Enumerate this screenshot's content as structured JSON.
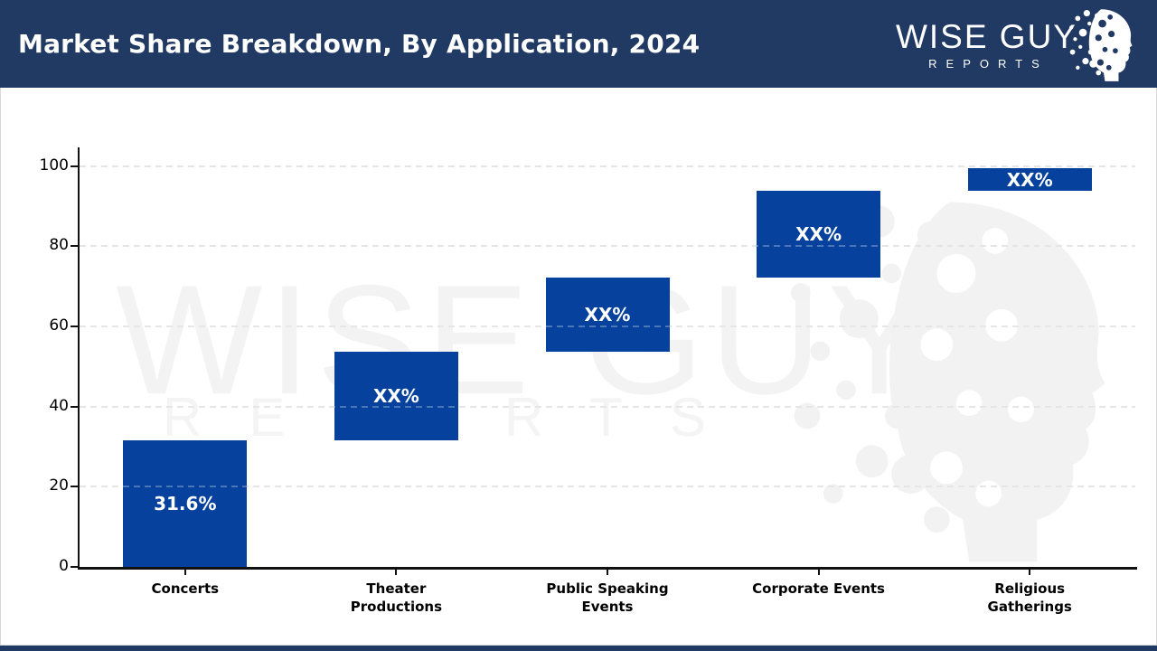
{
  "header": {
    "title": "Market Share Breakdown, By Application, 2024",
    "bg_color": "#213a64",
    "logo": {
      "line1": "WISE GUY",
      "line2": "REPORTS"
    }
  },
  "watermark": {
    "line1": "WISE GUY",
    "line2": "REPORTS"
  },
  "footer": {
    "bar_color": "#213a64"
  },
  "chart_data": {
    "type": "bar",
    "subtype": "floating-waterfall",
    "title": "Market Share Breakdown, By Application, 2024",
    "xlabel": "",
    "ylabel": "",
    "categories": [
      "Concerts",
      "Theater\nProductions",
      "Public Speaking\nEvents",
      "Corporate Events",
      "Religious\nGatherings"
    ],
    "segments": [
      {
        "category": "Concerts",
        "start": 0,
        "end": 31.6,
        "label": "31.6%"
      },
      {
        "category": "Theater Productions",
        "start": 31.6,
        "end": 53.8,
        "label": "XX%"
      },
      {
        "category": "Public Speaking Events",
        "start": 53.8,
        "end": 72.1,
        "label": "XX%"
      },
      {
        "category": "Corporate Events",
        "start": 72.1,
        "end": 93.8,
        "label": "XX%"
      },
      {
        "category": "Religious Gatherings",
        "start": 93.8,
        "end": 99.4,
        "label": "XX%"
      }
    ],
    "yticks": [
      0,
      20,
      40,
      60,
      80,
      100
    ],
    "ylim": [
      0,
      104.7
    ],
    "grid": "horizontal-dashed",
    "legend": "none",
    "bar_color": "#05419d",
    "bar_label_color": "#ffffff",
    "gridline_color": "#dcdcdc",
    "axis_color": "#111111"
  }
}
